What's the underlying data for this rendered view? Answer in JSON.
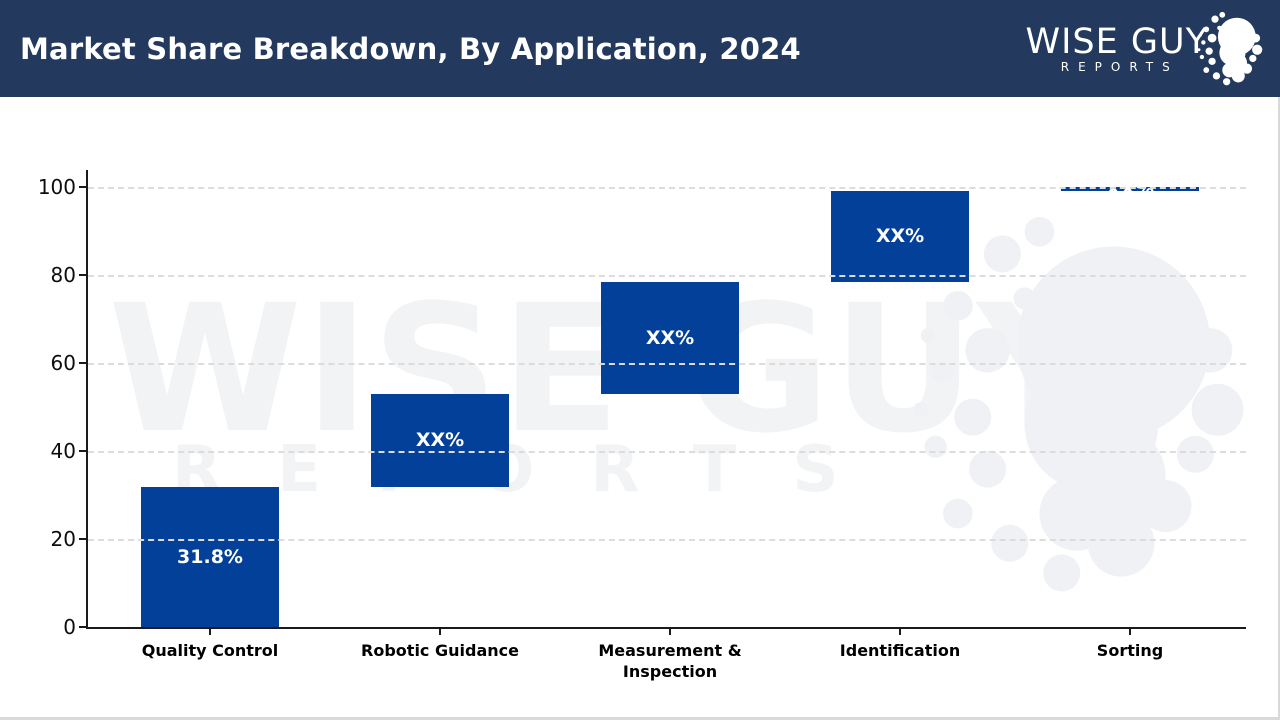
{
  "header": {
    "title": "Market Share Breakdown, By Application, 2024",
    "logo_name": "WISE GUY",
    "logo_sub": "REPORTS"
  },
  "watermark": {
    "line1": "WISE GUY",
    "line2": "REPORTS"
  },
  "colors": {
    "header_bg": "#23395d",
    "bar": "#03409a",
    "axis": "#1a1a1a",
    "grid": "#dcdcdc",
    "bar_label": "#ffffff",
    "watermark_text": "#f2f3f5",
    "watermark_head": "#eff1f4"
  },
  "chart_data": {
    "type": "bar",
    "subtype": "waterfall",
    "title": "Market Share Breakdown, By Application, 2024",
    "categories": [
      "Quality Control",
      "Robotic Guidance",
      "Measurement &\nInspection",
      "Identification",
      "Sorting"
    ],
    "segments": [
      {
        "category": "Quality Control",
        "start": 0,
        "end": 31.8,
        "label": "31.8%"
      },
      {
        "category": "Robotic Guidance",
        "start": 31.8,
        "end": 53.0,
        "label": "XX%"
      },
      {
        "category": "Measurement & Inspection",
        "start": 53.0,
        "end": 78.5,
        "label": "XX%"
      },
      {
        "category": "Identification",
        "start": 78.5,
        "end": 99.0,
        "label": "XX%"
      },
      {
        "category": "Sorting",
        "start": 99.0,
        "end": 100.0,
        "label": "XX%"
      }
    ],
    "ylim": [
      0,
      100
    ],
    "yticks": [
      0,
      20,
      40,
      60,
      80,
      100
    ],
    "xlabel": "",
    "ylabel": "",
    "grid": "horizontal-dashed",
    "legend": "none"
  }
}
